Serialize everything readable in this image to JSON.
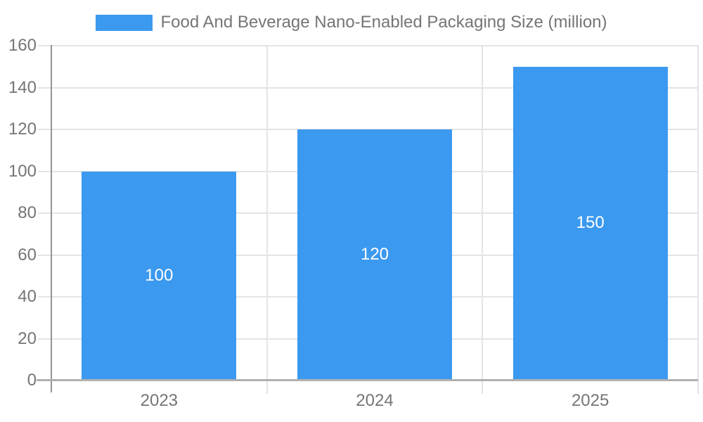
{
  "legend": {
    "label": "Food And Beverage Nano-Enabled Packaging Size (million)"
  },
  "chart_data": {
    "type": "bar",
    "title": "Food And Beverage Nano-Enabled Packaging Size (million)",
    "series": [
      {
        "name": "Food And Beverage Nano-Enabled Packaging Size (million)",
        "values": [
          100,
          120,
          150
        ]
      }
    ],
    "categories": [
      "2023",
      "2024",
      "2025"
    ],
    "data_labels": [
      "100",
      "120",
      "150"
    ],
    "xlabel": "",
    "ylabel": "",
    "ylim": [
      0,
      160
    ],
    "ytick_step": 20,
    "ytick_labels": [
      "0",
      "20",
      "40",
      "60",
      "80",
      "100",
      "120",
      "140",
      "160"
    ],
    "grid": "on",
    "legend_position": "top-center",
    "colors": {
      "bar": "#3B99EF",
      "grid": "#E4E4E4",
      "axis_y": "#949494",
      "axis_x": "#B0B0B0",
      "tick_text": "#757575",
      "legend_text": "#757575",
      "data_label_text": "#FFFFFF",
      "background": "#FFFFFF"
    }
  }
}
